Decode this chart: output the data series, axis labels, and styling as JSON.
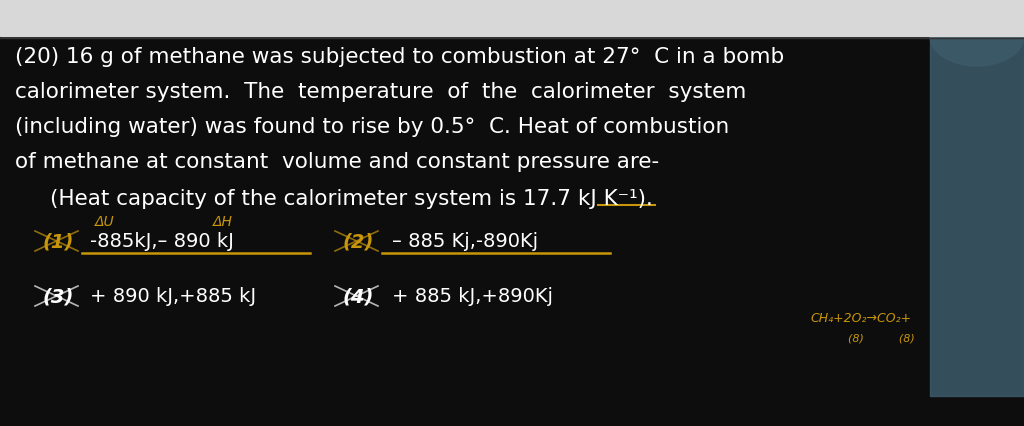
{
  "background_color": "#0d0d0d",
  "top_bar_color": "#d8d8d8",
  "text_color": "#ffffff",
  "gold_color": "#c8960a",
  "fig_width": 10.24,
  "fig_height": 4.27,
  "line1": "(20) 16 g of methane was subjected to combustion at 27°  C in a bomb",
  "line2": "calorimeter system.  The  temperature  of  the  calorimeter  system",
  "line3": "(including water) was found to rise by 0.5°  C. Heat of combustion",
  "line4": "of methane at constant  volume and constant pressure are-",
  "line5": "(Heat capacity of the calorimeter system is 17.7 kJ K⁻¹).",
  "opt1_marker": "(1)",
  "opt1_du": "ΔU",
  "opt1_dh": "ΔH",
  "opt1_text": "-885kJ,– 890 kJ",
  "opt2_marker": "(2)",
  "opt2_text": "– 885 Kj,-890Kj",
  "opt3_marker": "(3)",
  "opt3_text": "+ 890 kJ,+885 kJ",
  "opt4_marker": "(4)",
  "opt4_text": "+ 885 kJ,+890Kj",
  "reaction_line1": "CH₄+2O₂→CO₂+",
  "reaction_line2": "        (8)          (8)",
  "purple_color": "#4a5c6e"
}
